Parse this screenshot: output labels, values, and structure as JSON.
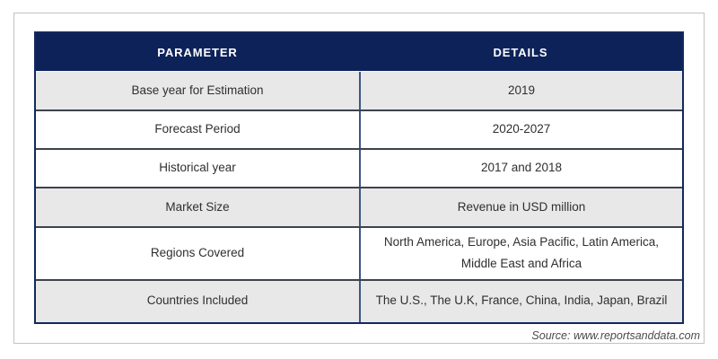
{
  "chart_data": {
    "type": "table",
    "title": "",
    "columns": [
      "PARAMETER",
      "DETAILS"
    ],
    "rows": [
      [
        "Base year for Estimation",
        "2019"
      ],
      [
        "Forecast Period",
        "2020-2027"
      ],
      [
        "Historical year",
        "2017 and 2018"
      ],
      [
        "Market Size",
        "Revenue in USD million"
      ],
      [
        "Regions Covered",
        "North America, Europe, Asia Pacific, Latin America, Middle East and Africa"
      ],
      [
        "Countries Included",
        "The U.S., The  U.K, France, China, India, Japan, Brazil"
      ]
    ],
    "layout": {
      "shaded_row_indices": [
        0,
        3,
        5
      ],
      "legend": "none",
      "grid": "row-separators"
    }
  },
  "source": {
    "label": "Source: www.reportsanddata.com"
  },
  "colors": {
    "header_bg": "#0d2259",
    "header_text": "#ffffff",
    "shaded_row_bg": "#e8e8e8",
    "plain_row_bg": "#ffffff",
    "outer_table_border": "#12295c",
    "column_divider": "#3e5586",
    "row_divider": "#3d434d",
    "cell_text": "#2f2f2f",
    "frame_border": "#c2c2c2",
    "source_text": "#4c4c4c"
  }
}
